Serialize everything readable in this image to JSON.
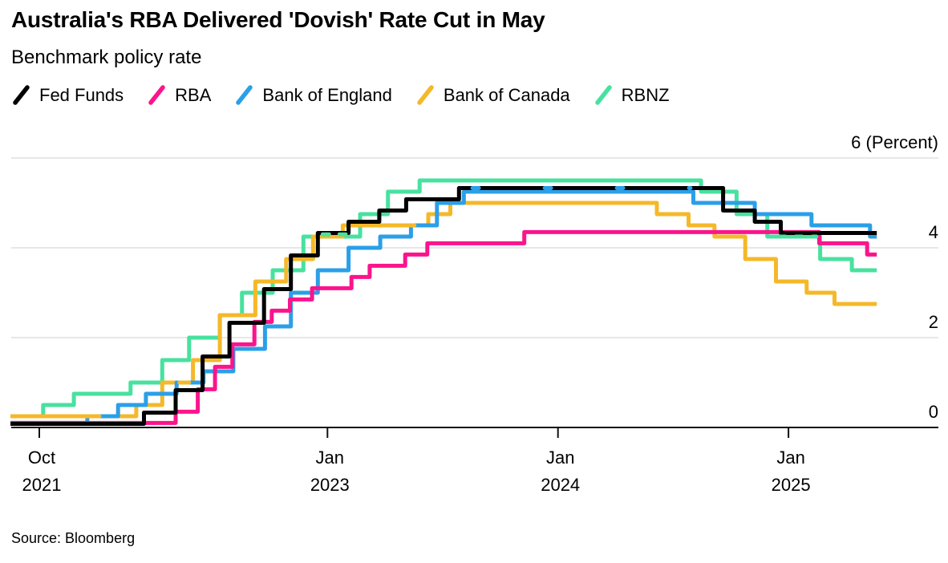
{
  "chart_data": {
    "type": "line",
    "step_style": "step-after",
    "title": "Australia's RBA Delivered 'Dovish' Rate Cut in May",
    "subtitle": "Benchmark policy rate",
    "unit": "Percent",
    "x_unit": "months_since_oct_2021",
    "x_start": -1.5,
    "x_end": 43.6,
    "ylim": [
      0,
      6.3
    ],
    "grid": "horizontal",
    "legend_position": "top",
    "yticks": [
      {
        "value": 6,
        "label": "6 (Percent)"
      },
      {
        "value": 4,
        "label": "4"
      },
      {
        "value": 2,
        "label": "2"
      },
      {
        "value": 0,
        "label": "0"
      }
    ],
    "xticks": [
      {
        "t": 0,
        "line1": "Oct",
        "line2": "2021"
      },
      {
        "t": 15,
        "line1": "Jan",
        "line2": "2023"
      },
      {
        "t": 27,
        "line1": "Jan",
        "line2": "2024"
      },
      {
        "t": 39,
        "line1": "Jan",
        "line2": "2025"
      }
    ],
    "series": [
      {
        "name": "RBNZ",
        "color": "#48e19f",
        "points": [
          [
            -1.5,
            0.25
          ],
          [
            0.2,
            0.5
          ],
          [
            1.8,
            0.75
          ],
          [
            4.75,
            1.0
          ],
          [
            6.4,
            1.5
          ],
          [
            7.8,
            2.0
          ],
          [
            9.4,
            2.5
          ],
          [
            10.55,
            3.0
          ],
          [
            12.15,
            3.5
          ],
          [
            13.75,
            4.25
          ],
          [
            16.7,
            4.75
          ],
          [
            18.15,
            5.25
          ],
          [
            19.8,
            5.5
          ],
          [
            34.45,
            5.25
          ],
          [
            36.3,
            4.75
          ],
          [
            37.9,
            4.25
          ],
          [
            40.65,
            3.75
          ],
          [
            42.3,
            3.5
          ]
        ]
      },
      {
        "name": "Bank of Canada",
        "color": "#f5b829",
        "points": [
          [
            -1.5,
            0.25
          ],
          [
            5.05,
            0.5
          ],
          [
            6.4,
            1.0
          ],
          [
            8.0,
            1.5
          ],
          [
            9.4,
            2.5
          ],
          [
            11.25,
            3.25
          ],
          [
            12.85,
            3.75
          ],
          [
            14.25,
            4.25
          ],
          [
            15.8,
            4.5
          ],
          [
            20.25,
            4.75
          ],
          [
            21.4,
            5.0
          ],
          [
            32.15,
            4.75
          ],
          [
            33.8,
            4.5
          ],
          [
            35.15,
            4.25
          ],
          [
            36.75,
            3.75
          ],
          [
            38.35,
            3.25
          ],
          [
            39.95,
            3.0
          ],
          [
            41.4,
            2.75
          ]
        ]
      },
      {
        "name": "Bank of England",
        "color": "#2b9fe8",
        "points": [
          [
            -1.5,
            0.1
          ],
          [
            2.5,
            0.25
          ],
          [
            4.1,
            0.5
          ],
          [
            5.55,
            0.75
          ],
          [
            7.15,
            1.0
          ],
          [
            8.55,
            1.25
          ],
          [
            10.1,
            1.75
          ],
          [
            11.75,
            2.25
          ],
          [
            13.1,
            3.0
          ],
          [
            14.5,
            3.5
          ],
          [
            16.1,
            4.0
          ],
          [
            17.75,
            4.25
          ],
          [
            19.35,
            4.5
          ],
          [
            20.7,
            5.0
          ],
          [
            22.1,
            5.25
          ],
          [
            34.05,
            5.0
          ],
          [
            37.25,
            4.75
          ],
          [
            40.2,
            4.5
          ],
          [
            43.25,
            4.25
          ]
        ]
      },
      {
        "name": "RBA",
        "color": "#fb148c",
        "points": [
          [
            -1.5,
            0.1
          ],
          [
            7.1,
            0.35
          ],
          [
            8.25,
            0.85
          ],
          [
            9.15,
            1.35
          ],
          [
            10.05,
            1.85
          ],
          [
            11.2,
            2.35
          ],
          [
            12.1,
            2.6
          ],
          [
            13.05,
            2.85
          ],
          [
            14.2,
            3.1
          ],
          [
            16.25,
            3.35
          ],
          [
            17.2,
            3.6
          ],
          [
            19.05,
            3.85
          ],
          [
            20.2,
            4.1
          ],
          [
            25.25,
            4.35
          ],
          [
            40.6,
            4.1
          ],
          [
            43.1,
            3.85
          ]
        ]
      },
      {
        "name": "Fed Funds",
        "color": "#000000",
        "points": [
          [
            -1.5,
            0.08
          ],
          [
            5.45,
            0.33
          ],
          [
            7.1,
            0.83
          ],
          [
            8.5,
            1.58
          ],
          [
            9.9,
            2.33
          ],
          [
            11.7,
            3.08
          ],
          [
            13.1,
            3.83
          ],
          [
            14.5,
            4.33
          ],
          [
            16.1,
            4.58
          ],
          [
            17.7,
            4.83
          ],
          [
            19.1,
            5.08
          ],
          [
            21.85,
            5.33
          ],
          [
            35.6,
            4.83
          ],
          [
            37.25,
            4.58
          ],
          [
            38.6,
            4.33
          ]
        ]
      }
    ],
    "overlap_dashes": [
      {
        "color": "#2b9fe8",
        "rate": 5.33,
        "t0": 22.55,
        "t1": 33.9,
        "dash": "8 82"
      },
      {
        "color": "#48e19f",
        "rate": 4.3,
        "t0": 14.75,
        "t1": 15.95,
        "dash": "8 13"
      },
      {
        "color": "#48e19f",
        "rate": 4.25,
        "t0": 38.5,
        "t1": 40.45,
        "dash": "8 13"
      },
      {
        "color": "#f5b829",
        "rate": 0.25,
        "t0": 2.3,
        "t1": 3.2,
        "dash": "20 300"
      },
      {
        "color": "#f5b829",
        "rate": 1.0,
        "t0": 7.3,
        "t1": 7.8,
        "dash": "12 300"
      },
      {
        "color": "#f5b829",
        "rate": 4.5,
        "t0": 19.2,
        "t1": 19.85,
        "dash": "8 11"
      }
    ]
  },
  "colors": {
    "axis": "#111111",
    "grid": "#e7e7e7"
  },
  "source_line": "Source: Bloomberg"
}
